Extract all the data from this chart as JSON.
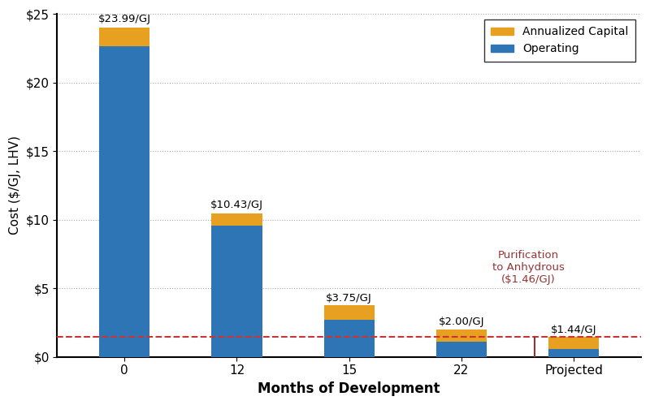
{
  "categories": [
    "0",
    "12",
    "15",
    "22",
    "Projected"
  ],
  "operating": [
    22.65,
    9.55,
    2.7,
    1.1,
    0.58
  ],
  "annualized_capital": [
    1.34,
    0.88,
    1.05,
    0.9,
    0.86
  ],
  "totals": [
    "$23.99/GJ",
    "$10.43/GJ",
    "$3.75/GJ",
    "$2.00/GJ",
    "$1.44/GJ"
  ],
  "total_values": [
    23.99,
    10.43,
    3.75,
    2.0,
    1.44
  ],
  "color_operating": "#2E75B6",
  "color_capital": "#E8A020",
  "color_dashed_line": "#CC3333",
  "color_vline": "#993333",
  "dashed_line_y": 1.46,
  "vline_annotation": "Purification\nto Anhydrous\n($1.46/GJ)",
  "xlabel": "Months of Development",
  "ylabel": "Cost ($/GJ, LHV)",
  "ylim": [
    0,
    25
  ],
  "yticks": [
    0,
    5,
    10,
    15,
    20,
    25
  ],
  "ytick_labels": [
    "$0",
    "$5",
    "$10",
    "$15",
    "$20",
    "$25"
  ],
  "legend_capital": "Annualized Capital",
  "legend_operating": "Operating",
  "background_color": "#ffffff",
  "grid_color": "#aaaaaa",
  "bar_width": 0.45
}
